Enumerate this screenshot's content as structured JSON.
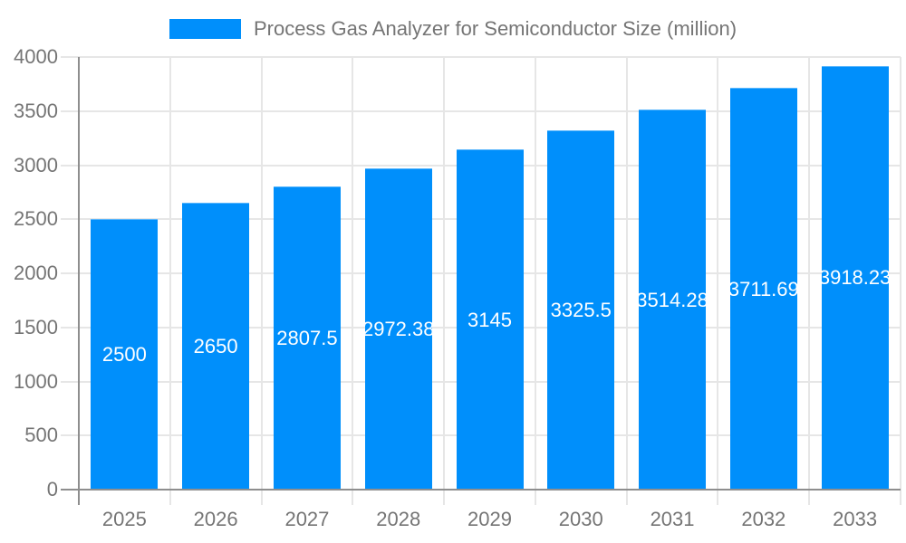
{
  "legend": {
    "label": "Process Gas Analyzer for Semiconductor Size (million)"
  },
  "chart_data": {
    "type": "bar",
    "title": "Process Gas Analyzer for Semiconductor Size (million)",
    "xlabel": "",
    "ylabel": "",
    "categories": [
      "2025",
      "2026",
      "2027",
      "2028",
      "2029",
      "2030",
      "2031",
      "2032",
      "2033"
    ],
    "values": [
      2500,
      2650,
      2807.5,
      2972.38,
      3145,
      3325.5,
      3514.28,
      3711.69,
      3918.23
    ],
    "value_labels": [
      "2500",
      "2650",
      "2807.5",
      "2972.38",
      "3145",
      "3325.5",
      "3514.28",
      "3711.69",
      "3918.23"
    ],
    "series": [
      {
        "name": "Process Gas Analyzer for Semiconductor Size (million)",
        "values": [
          2500,
          2650,
          2807.5,
          2972.38,
          3145,
          3325.5,
          3514.28,
          3711.69,
          3918.23
        ]
      }
    ],
    "ylim": [
      0,
      4000
    ],
    "y_tick_step": 500,
    "y_tick_labels": [
      "0",
      "500",
      "1000",
      "1500",
      "2000",
      "2500",
      "3000",
      "3500",
      "4000"
    ],
    "grid": true,
    "legend_position": "top",
    "colors": {
      "bar": "#008ffb",
      "axis_text": "#757575",
      "value_label": "#ffffff",
      "gridline": "#e6e6e6",
      "axis_line": "#8e8e8e",
      "background": "#ffffff"
    }
  }
}
